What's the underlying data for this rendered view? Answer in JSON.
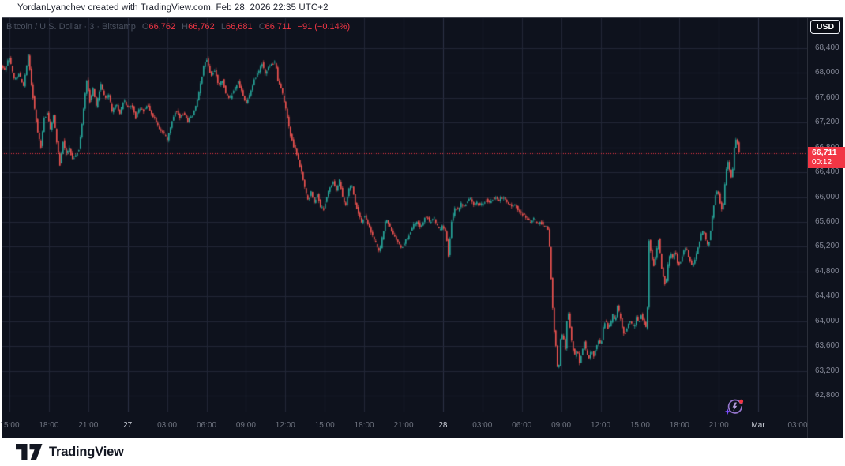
{
  "header": {
    "text": "YordanLyanchev created with TradingView.com, Feb 28, 2026 22:35 UTC+2"
  },
  "legend": {
    "symbol": "Bitcoin / U.S. Dollar · 3 · Bitstamp",
    "ohlc": [
      {
        "k": "O",
        "v": "66,762"
      },
      {
        "k": "H",
        "v": "66,762"
      },
      {
        "k": "L",
        "v": "66,681"
      },
      {
        "k": "C",
        "v": "66,711"
      }
    ],
    "change": "−91 (−0.14%)"
  },
  "axis_badge": {
    "label": "USD"
  },
  "price_badge": {
    "price": "66,711",
    "countdown": "00:12"
  },
  "footer": {
    "brand": "TradingView"
  },
  "colors": {
    "background": "#0e121d",
    "up": "#26a69a",
    "down": "#ef5350",
    "accent_red": "#f23645",
    "grid": "#222737",
    "grid_day": "#2c3145",
    "axis_text": "#848897",
    "axis_day_text": "#cfd3dc",
    "purple_icon": "#9575cd"
  },
  "chart_data": {
    "type": "candlestick",
    "symbol": "Bitcoin / U.S. Dollar",
    "interval": "3",
    "exchange": "Bitstamp",
    "ohlc": {
      "open": 66762,
      "high": 66762,
      "low": 66681,
      "close": 66711,
      "change": -91,
      "change_pct": -0.14
    },
    "last_price": 66711,
    "price_line": {
      "value": 66711,
      "style": "dotted",
      "color": "#f23645"
    },
    "price_axis": {
      "grid_step": 400,
      "ticks": [
        {
          "label": "68,400",
          "value": 68400
        },
        {
          "label": "68,000",
          "value": 68000
        },
        {
          "label": "67,600",
          "value": 67600
        },
        {
          "label": "67,200",
          "value": 67200
        },
        {
          "label": "66,800",
          "value": 66800
        },
        {
          "label": "66,400",
          "value": 66400
        },
        {
          "label": "66,000",
          "value": 66000
        },
        {
          "label": "65,600",
          "value": 65600
        },
        {
          "label": "65,200",
          "value": 65200
        },
        {
          "label": "64,800",
          "value": 64800
        },
        {
          "label": "64,400",
          "value": 64400
        },
        {
          "label": "64,000",
          "value": 64000
        },
        {
          "label": "63,600",
          "value": 63600
        },
        {
          "label": "63,200",
          "value": 63200
        },
        {
          "label": "62,800",
          "value": 62800
        }
      ]
    },
    "time_axis": {
      "ticks": [
        {
          "label": "15:00",
          "day": false
        },
        {
          "label": "18:00",
          "day": false
        },
        {
          "label": "21:00",
          "day": false
        },
        {
          "label": "27",
          "day": true
        },
        {
          "label": "03:00",
          "day": false
        },
        {
          "label": "06:00",
          "day": false
        },
        {
          "label": "09:00",
          "day": false
        },
        {
          "label": "12:00",
          "day": false
        },
        {
          "label": "15:00",
          "day": false
        },
        {
          "label": "18:00",
          "day": false
        },
        {
          "label": "21:00",
          "day": false
        },
        {
          "label": "28",
          "day": true
        },
        {
          "label": "03:00",
          "day": false
        },
        {
          "label": "06:00",
          "day": false
        },
        {
          "label": "09:00",
          "day": false
        },
        {
          "label": "12:00",
          "day": false
        },
        {
          "label": "15:00",
          "day": false
        },
        {
          "label": "18:00",
          "day": false
        },
        {
          "label": "21:00",
          "day": false
        },
        {
          "label": "Mar",
          "day": true
        },
        {
          "label": "03:00",
          "day": false
        }
      ]
    },
    "waypoints": [
      [
        0,
        68150
      ],
      [
        6,
        68050
      ],
      [
        12,
        68250
      ],
      [
        18,
        67900
      ],
      [
        24,
        67980
      ],
      [
        30,
        67800
      ],
      [
        36,
        68280
      ],
      [
        42,
        67600
      ],
      [
        48,
        67050
      ],
      [
        52,
        66820
      ],
      [
        56,
        67280
      ],
      [
        60,
        67350
      ],
      [
        64,
        67100
      ],
      [
        68,
        67300
      ],
      [
        72,
        66900
      ],
      [
        76,
        66530
      ],
      [
        80,
        66900
      ],
      [
        84,
        66700
      ],
      [
        88,
        66780
      ],
      [
        92,
        66620
      ],
      [
        96,
        66680
      ],
      [
        100,
        66760
      ],
      [
        104,
        67170
      ],
      [
        110,
        67890
      ],
      [
        114,
        67550
      ],
      [
        118,
        67740
      ],
      [
        122,
        67450
      ],
      [
        128,
        67830
      ],
      [
        133,
        67600
      ],
      [
        138,
        67650
      ],
      [
        142,
        67380
      ],
      [
        147,
        67500
      ],
      [
        152,
        67360
      ],
      [
        157,
        67560
      ],
      [
        162,
        67440
      ],
      [
        167,
        67500
      ],
      [
        172,
        67280
      ],
      [
        177,
        67450
      ],
      [
        182,
        67400
      ],
      [
        187,
        67500
      ],
      [
        192,
        67330
      ],
      [
        197,
        67250
      ],
      [
        202,
        67090
      ],
      [
        207,
        67050
      ],
      [
        212,
        66900
      ],
      [
        217,
        67200
      ],
      [
        223,
        67420
      ],
      [
        228,
        67280
      ],
      [
        233,
        67350
      ],
      [
        238,
        67220
      ],
      [
        243,
        67300
      ],
      [
        248,
        67450
      ],
      [
        253,
        67750
      ],
      [
        258,
        68100
      ],
      [
        262,
        68230
      ],
      [
        267,
        67950
      ],
      [
        272,
        68050
      ],
      [
        277,
        67800
      ],
      [
        282,
        67880
      ],
      [
        287,
        67640
      ],
      [
        292,
        67600
      ],
      [
        297,
        67750
      ],
      [
        302,
        67850
      ],
      [
        307,
        67680
      ],
      [
        312,
        67510
      ],
      [
        317,
        67700
      ],
      [
        322,
        67900
      ],
      [
        327,
        68000
      ],
      [
        332,
        68150
      ],
      [
        336,
        67980
      ],
      [
        340,
        68100
      ],
      [
        345,
        68150
      ],
      [
        349,
        68180
      ],
      [
        352,
        67900
      ],
      [
        356,
        67750
      ],
      [
        360,
        67550
      ],
      [
        364,
        67280
      ],
      [
        368,
        67000
      ],
      [
        372,
        66820
      ],
      [
        376,
        66700
      ],
      [
        380,
        66500
      ],
      [
        384,
        66280
      ],
      [
        388,
        66050
      ],
      [
        391,
        65950
      ],
      [
        394,
        66100
      ],
      [
        398,
        65900
      ],
      [
        402,
        66050
      ],
      [
        406,
        65850
      ],
      [
        410,
        65800
      ],
      [
        414,
        66000
      ],
      [
        418,
        66150
      ],
      [
        422,
        66260
      ],
      [
        426,
        66100
      ],
      [
        430,
        66260
      ],
      [
        434,
        66000
      ],
      [
        438,
        65850
      ],
      [
        442,
        66150
      ],
      [
        446,
        66170
      ],
      [
        450,
        65900
      ],
      [
        454,
        65750
      ],
      [
        458,
        65600
      ],
      [
        462,
        65720
      ],
      [
        466,
        65550
      ],
      [
        470,
        65450
      ],
      [
        474,
        65300
      ],
      [
        478,
        65200
      ],
      [
        481,
        65130
      ],
      [
        485,
        65400
      ],
      [
        489,
        65680
      ],
      [
        493,
        65550
      ],
      [
        497,
        65430
      ],
      [
        501,
        65350
      ],
      [
        505,
        65250
      ],
      [
        509,
        65180
      ],
      [
        513,
        65280
      ],
      [
        517,
        65350
      ],
      [
        521,
        65480
      ],
      [
        525,
        65580
      ],
      [
        529,
        65600
      ],
      [
        533,
        65500
      ],
      [
        537,
        65650
      ],
      [
        541,
        65690
      ],
      [
        545,
        65600
      ],
      [
        549,
        65680
      ],
      [
        553,
        65550
      ],
      [
        557,
        65480
      ],
      [
        561,
        65540
      ],
      [
        565,
        65420
      ],
      [
        568,
        65050
      ],
      [
        572,
        65600
      ],
      [
        576,
        65830
      ],
      [
        580,
        65800
      ],
      [
        584,
        65900
      ],
      [
        588,
        65850
      ],
      [
        592,
        65940
      ],
      [
        596,
        65960
      ],
      [
        600,
        65870
      ],
      [
        604,
        65920
      ],
      [
        608,
        65850
      ],
      [
        612,
        65900
      ],
      [
        616,
        65950
      ],
      [
        620,
        65900
      ],
      [
        624,
        65970
      ],
      [
        628,
        66000
      ],
      [
        632,
        65950
      ],
      [
        636,
        66000
      ],
      [
        640,
        65980
      ],
      [
        644,
        65900
      ],
      [
        648,
        65850
      ],
      [
        652,
        65870
      ],
      [
        656,
        65800
      ],
      [
        660,
        65750
      ],
      [
        664,
        65700
      ],
      [
        668,
        65640
      ],
      [
        672,
        65600
      ],
      [
        676,
        65650
      ],
      [
        680,
        65580
      ],
      [
        684,
        65600
      ],
      [
        688,
        65560
      ],
      [
        692,
        65540
      ],
      [
        695,
        65450
      ],
      [
        698,
        64700
      ],
      [
        701,
        63950
      ],
      [
        704,
        63600
      ],
      [
        707,
        63100
      ],
      [
        710,
        63700
      ],
      [
        713,
        63800
      ],
      [
        716,
        63550
      ],
      [
        719,
        64250
      ],
      [
        722,
        63900
      ],
      [
        725,
        63600
      ],
      [
        728,
        63450
      ],
      [
        731,
        63550
      ],
      [
        734,
        63350
      ],
      [
        737,
        63500
      ],
      [
        740,
        63650
      ],
      [
        743,
        63500
      ],
      [
        746,
        63400
      ],
      [
        749,
        63550
      ],
      [
        752,
        63450
      ],
      [
        755,
        63600
      ],
      [
        758,
        63700
      ],
      [
        761,
        63600
      ],
      [
        764,
        63900
      ],
      [
        767,
        64030
      ],
      [
        770,
        63900
      ],
      [
        773,
        63950
      ],
      [
        776,
        64100
      ],
      [
        779,
        64000
      ],
      [
        782,
        64240
      ],
      [
        785,
        64100
      ],
      [
        788,
        63900
      ],
      [
        791,
        63780
      ],
      [
        794,
        63900
      ],
      [
        797,
        64000
      ],
      [
        800,
        63950
      ],
      [
        803,
        63900
      ],
      [
        806,
        64050
      ],
      [
        809,
        63980
      ],
      [
        812,
        64100
      ],
      [
        815,
        64000
      ],
      [
        818,
        63900
      ],
      [
        820,
        64200
      ],
      [
        822,
        65300
      ],
      [
        825,
        65050
      ],
      [
        828,
        64900
      ],
      [
        831,
        65100
      ],
      [
        834,
        65330
      ],
      [
        837,
        64950
      ],
      [
        840,
        64700
      ],
      [
        843,
        64550
      ],
      [
        846,
        64900
      ],
      [
        849,
        65100
      ],
      [
        852,
        65000
      ],
      [
        855,
        65150
      ],
      [
        858,
        64950
      ],
      [
        861,
        64900
      ],
      [
        864,
        65050
      ],
      [
        867,
        65180
      ],
      [
        870,
        65150
      ],
      [
        873,
        65000
      ],
      [
        876,
        64900
      ],
      [
        879,
        64950
      ],
      [
        882,
        65100
      ],
      [
        885,
        65250
      ],
      [
        888,
        65400
      ],
      [
        891,
        65470
      ],
      [
        894,
        65300
      ],
      [
        897,
        65200
      ],
      [
        900,
        65450
      ],
      [
        903,
        65800
      ],
      [
        906,
        66050
      ],
      [
        909,
        66130
      ],
      [
        912,
        65900
      ],
      [
        915,
        65750
      ],
      [
        918,
        66200
      ],
      [
        921,
        66600
      ],
      [
        924,
        66450
      ],
      [
        927,
        66250
      ],
      [
        930,
        66800
      ],
      [
        933,
        67020
      ],
      [
        935,
        66711
      ]
    ]
  }
}
